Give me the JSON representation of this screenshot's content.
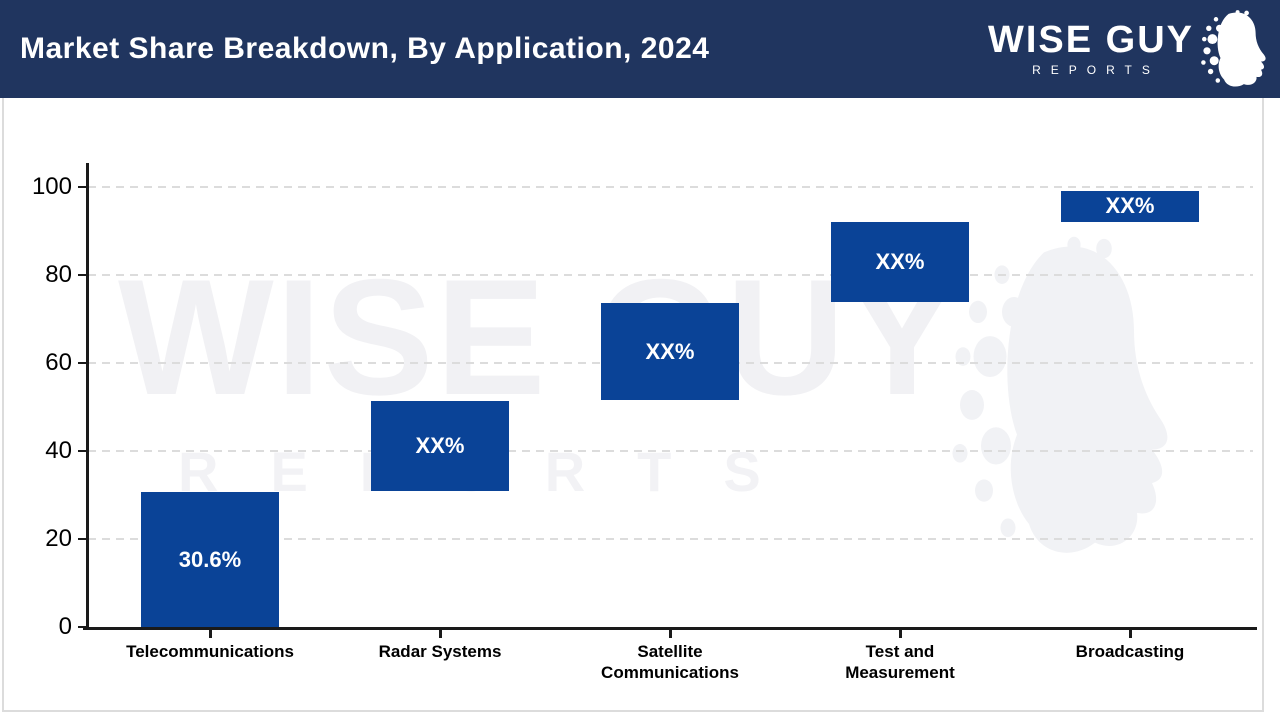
{
  "header": {
    "title": "Market Share Breakdown, By Application, 2024",
    "logo": {
      "line1": "WISE GUY",
      "line2": "REPORTS"
    }
  },
  "watermark": {
    "line1": "WISE GUY",
    "line2": "REPORTS"
  },
  "colors": {
    "header_bg": "#20355F",
    "bar": "#0A4397",
    "bar_label": "#FFFFFF",
    "grid": "#DCDCDC",
    "axis": "#1A1A1A",
    "tick_text": "#000000",
    "watermark": "#F1F2F5",
    "card_border": "#DCDCDC"
  },
  "chart_data": {
    "type": "bar",
    "variant": "floating-waterfall",
    "title": "Market Share Breakdown, By Application, 2024",
    "xlabel": "",
    "ylabel": "",
    "ylim": [
      0,
      105
    ],
    "yticks": [
      0,
      20,
      40,
      60,
      80,
      100
    ],
    "grid": "horizontal dashed",
    "legend": "none",
    "categories": [
      "Telecommunications",
      "Radar Systems",
      "Satellite Communications",
      "Test and Measurement",
      "Broadcasting"
    ],
    "segments": [
      {
        "category": "Telecommunications",
        "category_lines": [
          "Telecommunications"
        ],
        "start": 0,
        "end": 30.6,
        "label": "30.6%"
      },
      {
        "category": "Radar Systems",
        "category_lines": [
          "Radar Systems"
        ],
        "start": 30.9,
        "end": 51.3,
        "label": "XX%"
      },
      {
        "category": "Satellite Communications",
        "category_lines": [
          "Satellite",
          "Communications"
        ],
        "start": 51.6,
        "end": 73.6,
        "label": "XX%"
      },
      {
        "category": "Test and Measurement",
        "category_lines": [
          "Test and",
          "Measurement"
        ],
        "start": 73.9,
        "end": 92.0,
        "label": "XX%"
      },
      {
        "category": "Broadcasting",
        "category_lines": [
          "Broadcasting"
        ],
        "start": 92.0,
        "end": 99.2,
        "label": "XX%"
      }
    ]
  }
}
